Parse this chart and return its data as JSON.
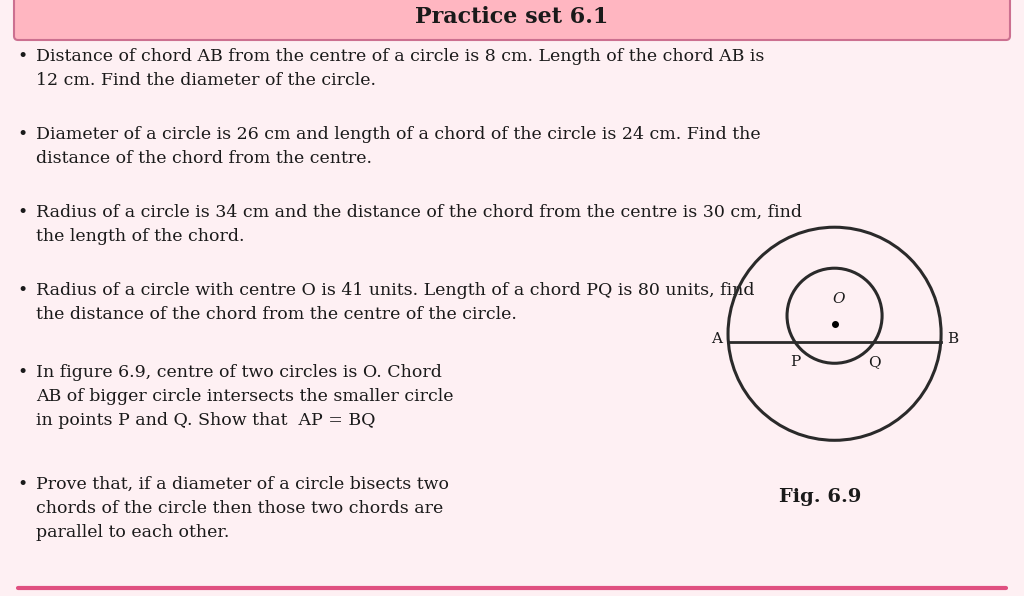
{
  "title": "Practice set 6.1",
  "title_bg_color": "#FFB6C1",
  "title_border_color": "#CC7090",
  "bg_color": "#FEF0F3",
  "text_color": "#1a1a1a",
  "problems": [
    "Distance of chord AB from the centre of a circle is 8 cm. Length of the chord AB is\n12 cm. Find the diameter of the circle.",
    "Diameter of a circle is 26 cm and length of a chord of the circle is 24 cm. Find the\ndistance of the chord from the centre.",
    "Radius of a circle is 34 cm and the distance of the chord from the centre is 30 cm, find\nthe length of the chord.",
    "Radius of a circle with centre O is 41 units. Length of a chord PQ is 80 units, find\nthe distance of the chord from the centre of the circle.",
    "In figure 6.9, centre of two circles is O. Chord\nAB of bigger circle intersects the smaller circle\nin points P and Q. Show that  AP = BQ",
    "Prove that, if a diameter of a circle bisects two\nchords of the circle then those two chords are\nparallel to each other."
  ],
  "fig_caption": "Fig. 6.9",
  "bottom_border_color": "#E05080"
}
